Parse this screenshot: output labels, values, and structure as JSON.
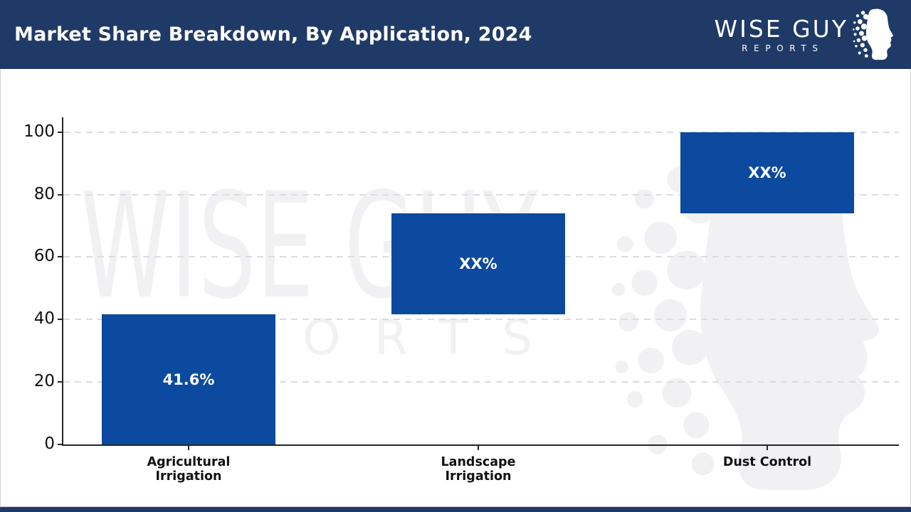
{
  "header": {
    "title": "Market Share Breakdown, By Application, 2024",
    "background": "#1f3a66",
    "logo": {
      "line1": "WISE GUY",
      "line2": "REPORTS"
    }
  },
  "watermark": {
    "line1": "WISE GUY",
    "line2": "REPORTS"
  },
  "chart_data": {
    "type": "bar",
    "variant": "waterfall-stacked-percentage",
    "title": "Market Share Breakdown, By Application, 2024",
    "categories": [
      "Agricultural Irrigation",
      "Landscape Irrigation",
      "Dust Control"
    ],
    "segments": [
      {
        "category": "Agricultural Irrigation",
        "start": 0,
        "end": 41.6,
        "label": "41.6%"
      },
      {
        "category": "Landscape Irrigation",
        "start": 41.6,
        "end": 74,
        "label": "XX%"
      },
      {
        "category": "Dust Control",
        "start": 74,
        "end": 100,
        "label": "XX%"
      }
    ],
    "xlabel": "",
    "ylabel": "",
    "yticks": [
      0,
      20,
      40,
      60,
      80,
      100
    ],
    "ylim": [
      0,
      105
    ],
    "grid": "horizontal-dashed",
    "legend": "none",
    "bar_color": "#0b4a9e",
    "bar_label_color": "#ffffff",
    "axis_color": "#262626",
    "gridline_color": "#dcdcdc",
    "tick_label_color": "#111111"
  }
}
